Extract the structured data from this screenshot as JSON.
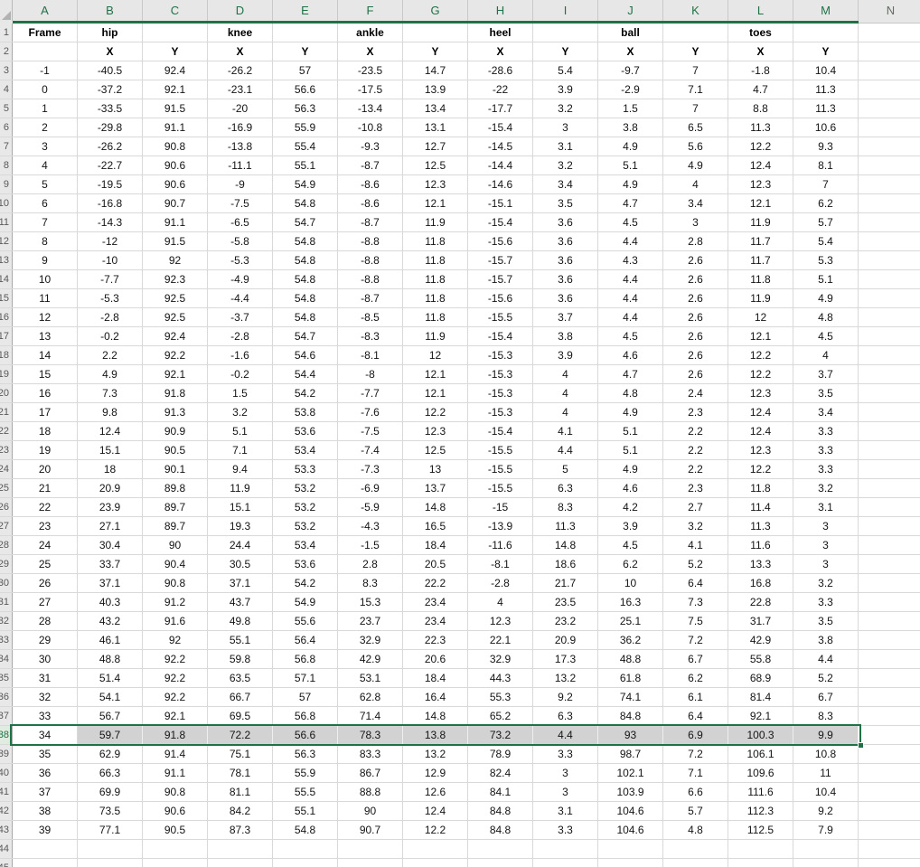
{
  "app": {
    "type": "spreadsheet-grid"
  },
  "colors": {
    "accent_green": "#1F7246",
    "selection_fill": "#D2D2D2",
    "header_bg": "#E7E7E7",
    "header_text": "#5F6F5F",
    "header_text_selected": "#1F7246",
    "gridline": "#D9D9D9",
    "row_number_text": "#595959"
  },
  "column_headers": {
    "letters": [
      "A",
      "B",
      "C",
      "D",
      "E",
      "F",
      "G",
      "H",
      "I",
      "J",
      "K",
      "L",
      "M",
      "N"
    ],
    "selected_letters": [
      "A",
      "B",
      "C",
      "D",
      "E",
      "F",
      "G",
      "H",
      "I",
      "J",
      "K",
      "L",
      "M"
    ]
  },
  "row_numbers": {
    "first": 1,
    "last": 45
  },
  "header_row1": {
    "A": "Frame",
    "B": "hip",
    "D": "knee",
    "F": "ankle",
    "H": "heel",
    "J": "ball",
    "L": "toes"
  },
  "header_row2": {
    "B": "X",
    "C": "Y",
    "D": "X",
    "E": "Y",
    "F": "X",
    "G": "Y",
    "H": "X",
    "I": "Y",
    "J": "X",
    "K": "Y",
    "L": "X",
    "M": "Y"
  },
  "selection": {
    "sheet_row": 38,
    "active_cell": "A38",
    "active_cell_value": 34,
    "first_column": "A",
    "last_column": "M"
  },
  "table": {
    "columns": [
      "Frame",
      "hip X",
      "hip Y",
      "knee X",
      "knee Y",
      "ankle X",
      "ankle Y",
      "heel X",
      "heel Y",
      "ball X",
      "ball Y",
      "toes X",
      "toes Y"
    ],
    "first_sheet_row": 3,
    "rows": [
      [
        -1,
        -40.5,
        92.4,
        -26.2,
        57,
        -23.5,
        14.7,
        -28.6,
        5.4,
        -9.7,
        7,
        -1.8,
        10.4
      ],
      [
        0,
        -37.2,
        92.1,
        -23.1,
        56.6,
        -17.5,
        13.9,
        -22,
        3.9,
        -2.9,
        7.1,
        4.7,
        11.3
      ],
      [
        1,
        -33.5,
        91.5,
        -20,
        56.3,
        -13.4,
        13.4,
        -17.7,
        3.2,
        1.5,
        7,
        8.8,
        11.3
      ],
      [
        2,
        -29.8,
        91.1,
        -16.9,
        55.9,
        -10.8,
        13.1,
        -15.4,
        3,
        3.8,
        6.5,
        11.3,
        10.6
      ],
      [
        3,
        -26.2,
        90.8,
        -13.8,
        55.4,
        -9.3,
        12.7,
        -14.5,
        3.1,
        4.9,
        5.6,
        12.2,
        9.3
      ],
      [
        4,
        -22.7,
        90.6,
        -11.1,
        55.1,
        -8.7,
        12.5,
        -14.4,
        3.2,
        5.1,
        4.9,
        12.4,
        8.1
      ],
      [
        5,
        -19.5,
        90.6,
        -9,
        54.9,
        -8.6,
        12.3,
        -14.6,
        3.4,
        4.9,
        4,
        12.3,
        7
      ],
      [
        6,
        -16.8,
        90.7,
        -7.5,
        54.8,
        -8.6,
        12.1,
        -15.1,
        3.5,
        4.7,
        3.4,
        12.1,
        6.2
      ],
      [
        7,
        -14.3,
        91.1,
        -6.5,
        54.7,
        -8.7,
        11.9,
        -15.4,
        3.6,
        4.5,
        3,
        11.9,
        5.7
      ],
      [
        8,
        -12,
        91.5,
        -5.8,
        54.8,
        -8.8,
        11.8,
        -15.6,
        3.6,
        4.4,
        2.8,
        11.7,
        5.4
      ],
      [
        9,
        -10,
        92,
        -5.3,
        54.8,
        -8.8,
        11.8,
        -15.7,
        3.6,
        4.3,
        2.6,
        11.7,
        5.3
      ],
      [
        10,
        -7.7,
        92.3,
        -4.9,
        54.8,
        -8.8,
        11.8,
        -15.7,
        3.6,
        4.4,
        2.6,
        11.8,
        5.1
      ],
      [
        11,
        -5.3,
        92.5,
        -4.4,
        54.8,
        -8.7,
        11.8,
        -15.6,
        3.6,
        4.4,
        2.6,
        11.9,
        4.9
      ],
      [
        12,
        -2.8,
        92.5,
        -3.7,
        54.8,
        -8.5,
        11.8,
        -15.5,
        3.7,
        4.4,
        2.6,
        12,
        4.8
      ],
      [
        13,
        -0.2,
        92.4,
        -2.8,
        54.7,
        -8.3,
        11.9,
        -15.4,
        3.8,
        4.5,
        2.6,
        12.1,
        4.5
      ],
      [
        14,
        2.2,
        92.2,
        -1.6,
        54.6,
        -8.1,
        12,
        -15.3,
        3.9,
        4.6,
        2.6,
        12.2,
        4
      ],
      [
        15,
        4.9,
        92.1,
        -0.2,
        54.4,
        -8,
        12.1,
        -15.3,
        4,
        4.7,
        2.6,
        12.2,
        3.7
      ],
      [
        16,
        7.3,
        91.8,
        1.5,
        54.2,
        -7.7,
        12.1,
        -15.3,
        4,
        4.8,
        2.4,
        12.3,
        3.5
      ],
      [
        17,
        9.8,
        91.3,
        3.2,
        53.8,
        -7.6,
        12.2,
        -15.3,
        4,
        4.9,
        2.3,
        12.4,
        3.4
      ],
      [
        18,
        12.4,
        90.9,
        5.1,
        53.6,
        -7.5,
        12.3,
        -15.4,
        4.1,
        5.1,
        2.2,
        12.4,
        3.3
      ],
      [
        19,
        15.1,
        90.5,
        7.1,
        53.4,
        -7.4,
        12.5,
        -15.5,
        4.4,
        5.1,
        2.2,
        12.3,
        3.3
      ],
      [
        20,
        18,
        90.1,
        9.4,
        53.3,
        -7.3,
        13,
        -15.5,
        5,
        4.9,
        2.2,
        12.2,
        3.3
      ],
      [
        21,
        20.9,
        89.8,
        11.9,
        53.2,
        -6.9,
        13.7,
        -15.5,
        6.3,
        4.6,
        2.3,
        11.8,
        3.2
      ],
      [
        22,
        23.9,
        89.7,
        15.1,
        53.2,
        -5.9,
        14.8,
        -15,
        8.3,
        4.2,
        2.7,
        11.4,
        3.1
      ],
      [
        23,
        27.1,
        89.7,
        19.3,
        53.2,
        -4.3,
        16.5,
        -13.9,
        11.3,
        3.9,
        3.2,
        11.3,
        3
      ],
      [
        24,
        30.4,
        90,
        24.4,
        53.4,
        -1.5,
        18.4,
        -11.6,
        14.8,
        4.5,
        4.1,
        11.6,
        3
      ],
      [
        25,
        33.7,
        90.4,
        30.5,
        53.6,
        2.8,
        20.5,
        -8.1,
        18.6,
        6.2,
        5.2,
        13.3,
        3
      ],
      [
        26,
        37.1,
        90.8,
        37.1,
        54.2,
        8.3,
        22.2,
        -2.8,
        21.7,
        10,
        6.4,
        16.8,
        3.2
      ],
      [
        27,
        40.3,
        91.2,
        43.7,
        54.9,
        15.3,
        23.4,
        4,
        23.5,
        16.3,
        7.3,
        22.8,
        3.3
      ],
      [
        28,
        43.2,
        91.6,
        49.8,
        55.6,
        23.7,
        23.4,
        12.3,
        23.2,
        25.1,
        7.5,
        31.7,
        3.5
      ],
      [
        29,
        46.1,
        92,
        55.1,
        56.4,
        32.9,
        22.3,
        22.1,
        20.9,
        36.2,
        7.2,
        42.9,
        3.8
      ],
      [
        30,
        48.8,
        92.2,
        59.8,
        56.8,
        42.9,
        20.6,
        32.9,
        17.3,
        48.8,
        6.7,
        55.8,
        4.4
      ],
      [
        31,
        51.4,
        92.2,
        63.5,
        57.1,
        53.1,
        18.4,
        44.3,
        13.2,
        61.8,
        6.2,
        68.9,
        5.2
      ],
      [
        32,
        54.1,
        92.2,
        66.7,
        57,
        62.8,
        16.4,
        55.3,
        9.2,
        74.1,
        6.1,
        81.4,
        6.7
      ],
      [
        33,
        56.7,
        92.1,
        69.5,
        56.8,
        71.4,
        14.8,
        65.2,
        6.3,
        84.8,
        6.4,
        92.1,
        8.3
      ],
      [
        34,
        59.7,
        91.8,
        72.2,
        56.6,
        78.3,
        13.8,
        73.2,
        4.4,
        93,
        6.9,
        100.3,
        9.9
      ],
      [
        35,
        62.9,
        91.4,
        75.1,
        56.3,
        83.3,
        13.2,
        78.9,
        3.3,
        98.7,
        7.2,
        106.1,
        10.8
      ],
      [
        36,
        66.3,
        91.1,
        78.1,
        55.9,
        86.7,
        12.9,
        82.4,
        3,
        102.1,
        7.1,
        109.6,
        11
      ],
      [
        37,
        69.9,
        90.8,
        81.1,
        55.5,
        88.8,
        12.6,
        84.1,
        3,
        103.9,
        6.6,
        111.6,
        10.4
      ],
      [
        38,
        73.5,
        90.6,
        84.2,
        55.1,
        90,
        12.4,
        84.8,
        3.1,
        104.6,
        5.7,
        112.3,
        9.2
      ],
      [
        39,
        77.1,
        90.5,
        87.3,
        54.8,
        90.7,
        12.2,
        84.8,
        3.3,
        104.6,
        4.8,
        112.5,
        7.9
      ]
    ]
  }
}
